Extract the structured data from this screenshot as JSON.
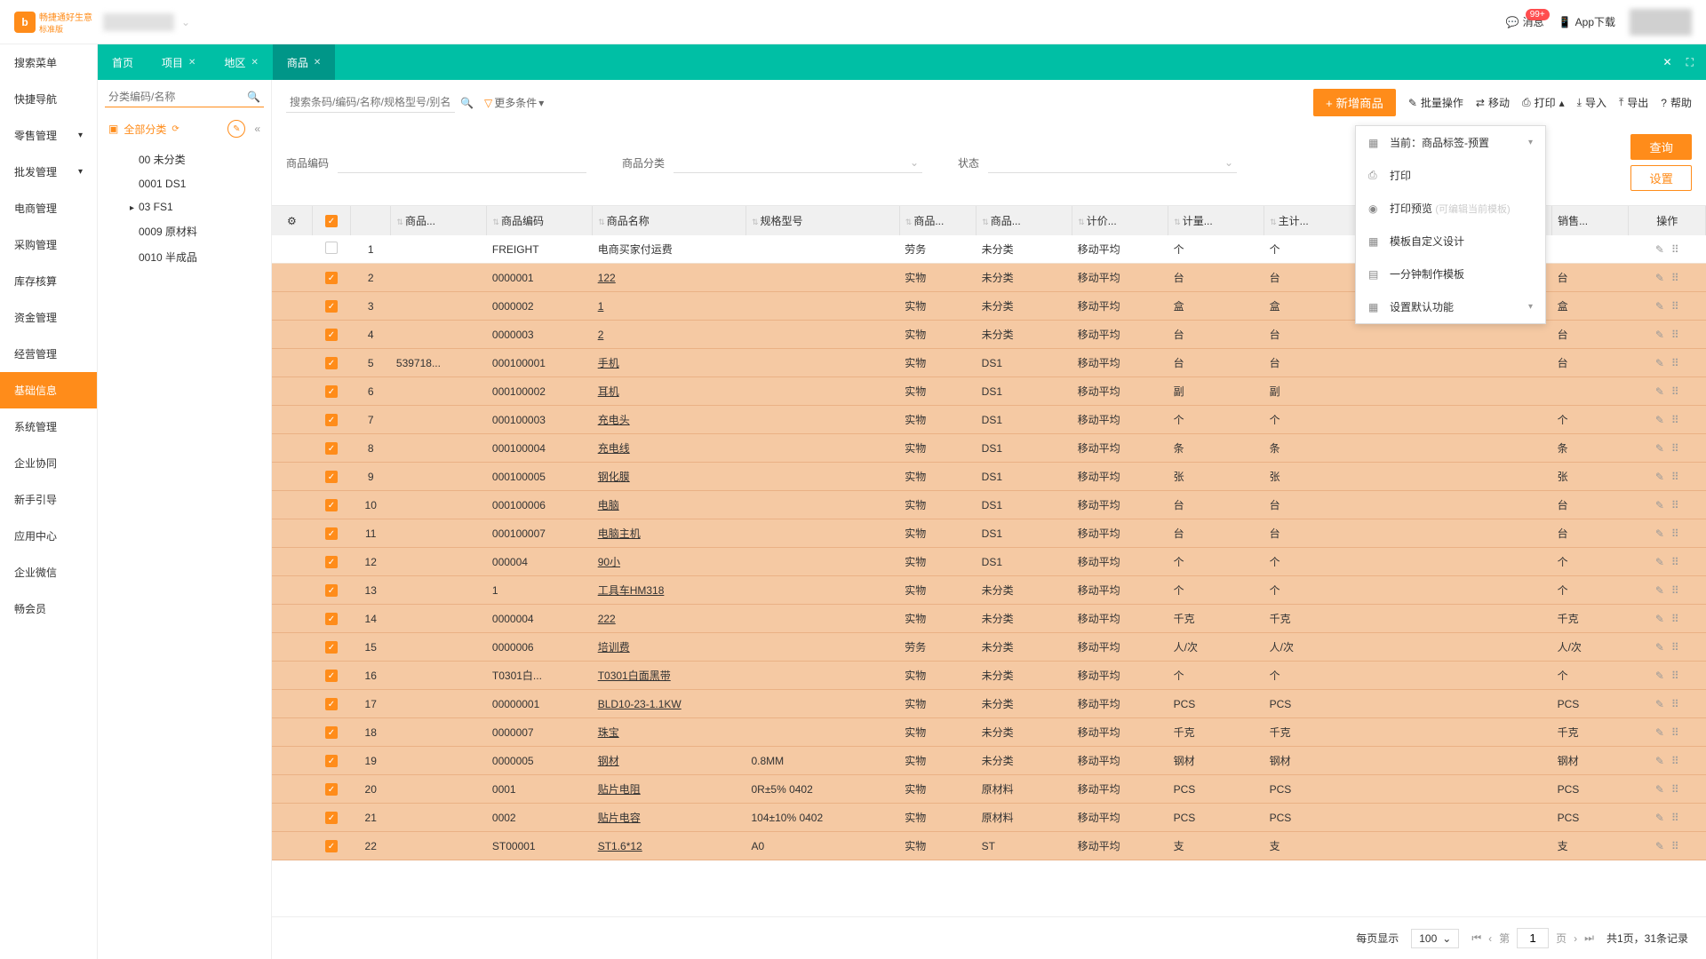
{
  "header": {
    "logo_label": "畅捷通好生意",
    "logo_sub": "标准版",
    "msg": "消息",
    "msg_badge": "99+",
    "download": "App下载"
  },
  "tabs": [
    {
      "label": "首页",
      "closable": false
    },
    {
      "label": "项目",
      "closable": true
    },
    {
      "label": "地区",
      "closable": true
    },
    {
      "label": "商品",
      "closable": true,
      "active": true
    }
  ],
  "sidebar": [
    {
      "label": "搜索菜单"
    },
    {
      "label": "快捷导航"
    },
    {
      "label": "零售管理",
      "expandable": true
    },
    {
      "label": "批发管理",
      "expandable": true
    },
    {
      "label": "电商管理"
    },
    {
      "label": "采购管理"
    },
    {
      "label": "库存核算"
    },
    {
      "label": "资金管理"
    },
    {
      "label": "经营管理"
    },
    {
      "label": "基础信息",
      "active": true
    },
    {
      "label": "系统管理"
    },
    {
      "label": "企业协同"
    },
    {
      "label": "新手引导"
    },
    {
      "label": "应用中心"
    },
    {
      "label": "企业微信"
    },
    {
      "label": "畅会员"
    }
  ],
  "category": {
    "search_placeholder": "分类编码/名称",
    "all_label": "全部分类",
    "items": [
      {
        "label": "00 未分类"
      },
      {
        "label": "0001 DS1"
      },
      {
        "label": "03 FS1",
        "caret": true
      },
      {
        "label": "0009 原材料"
      },
      {
        "label": "0010 半成品"
      }
    ]
  },
  "toolbar": {
    "search_placeholder": "搜索条码/编码/名称/规格型号/别名",
    "more": "更多条件",
    "add": "+ 新增商品",
    "batch": "批量操作",
    "move": "移动",
    "print": "打印",
    "import": "导入",
    "export": "导出",
    "help": "帮助"
  },
  "filters": {
    "code_label": "商品编码",
    "cat_label": "商品分类",
    "status_label": "状态",
    "query": "查询",
    "settings": "设置"
  },
  "print_menu": {
    "current_prefix": "当前：",
    "current_value": "商品标签-预置",
    "print": "打印",
    "preview": "打印预览",
    "preview_hint": "(可编辑当前模板)",
    "template": "模板自定义设计",
    "quick": "一分钟制作模板",
    "default": "设置默认功能"
  },
  "columns": {
    "barcode": "商品...",
    "code": "商品编码",
    "name": "商品名称",
    "spec": "规格型号",
    "type": "商品...",
    "category": "商品...",
    "pricing": "计价...",
    "unit": "计量...",
    "main_unit": "主计...",
    "sales_unit": "销售...",
    "action": "操作"
  },
  "rows": [
    {
      "idx": "1",
      "chk": false,
      "bar": "",
      "code": "FREIGHT",
      "name": "电商买家付运费",
      "spec": "",
      "type": "劳务",
      "cat": "未分类",
      "price": "移动平均",
      "unit": "个",
      "munit": "个",
      "sunit": "",
      "link": false
    },
    {
      "idx": "2",
      "chk": true,
      "bar": "",
      "code": "0000001",
      "name": "122",
      "spec": "",
      "type": "实物",
      "cat": "未分类",
      "price": "移动平均",
      "unit": "台",
      "munit": "台",
      "sunit": "台",
      "link": true
    },
    {
      "idx": "3",
      "chk": true,
      "bar": "",
      "code": "0000002",
      "name": "1",
      "spec": "",
      "type": "实物",
      "cat": "未分类",
      "price": "移动平均",
      "unit": "盒",
      "munit": "盒",
      "sunit": "盒",
      "link": true
    },
    {
      "idx": "4",
      "chk": true,
      "bar": "",
      "code": "0000003",
      "name": "2",
      "spec": "",
      "type": "实物",
      "cat": "未分类",
      "price": "移动平均",
      "unit": "台",
      "munit": "台",
      "sunit": "台",
      "link": true
    },
    {
      "idx": "5",
      "chk": true,
      "bar": "539718...",
      "code": "000100001",
      "name": "手机",
      "spec": "",
      "type": "实物",
      "cat": "DS1",
      "price": "移动平均",
      "unit": "台",
      "munit": "台",
      "sunit": "台",
      "link": true
    },
    {
      "idx": "6",
      "chk": true,
      "bar": "",
      "code": "000100002",
      "name": "耳机",
      "spec": "",
      "type": "实物",
      "cat": "DS1",
      "price": "移动平均",
      "unit": "副",
      "munit": "副",
      "sunit": "",
      "link": true
    },
    {
      "idx": "7",
      "chk": true,
      "bar": "",
      "code": "000100003",
      "name": "充电头",
      "spec": "",
      "type": "实物",
      "cat": "DS1",
      "price": "移动平均",
      "unit": "个",
      "munit": "个",
      "sunit": "个",
      "link": true
    },
    {
      "idx": "8",
      "chk": true,
      "bar": "",
      "code": "000100004",
      "name": "充电线",
      "spec": "",
      "type": "实物",
      "cat": "DS1",
      "price": "移动平均",
      "unit": "条",
      "munit": "条",
      "sunit": "条",
      "link": true
    },
    {
      "idx": "9",
      "chk": true,
      "bar": "",
      "code": "000100005",
      "name": "钢化膜",
      "spec": "",
      "type": "实物",
      "cat": "DS1",
      "price": "移动平均",
      "unit": "张",
      "munit": "张",
      "sunit": "张",
      "link": true
    },
    {
      "idx": "10",
      "chk": true,
      "bar": "",
      "code": "000100006",
      "name": "电脑",
      "spec": "",
      "type": "实物",
      "cat": "DS1",
      "price": "移动平均",
      "unit": "台",
      "munit": "台",
      "sunit": "台",
      "link": true
    },
    {
      "idx": "11",
      "chk": true,
      "bar": "",
      "code": "000100007",
      "name": "电脑主机",
      "spec": "",
      "type": "实物",
      "cat": "DS1",
      "price": "移动平均",
      "unit": "台",
      "munit": "台",
      "sunit": "台",
      "link": true
    },
    {
      "idx": "12",
      "chk": true,
      "bar": "",
      "code": "000004",
      "name": "90小",
      "spec": "",
      "type": "实物",
      "cat": "DS1",
      "price": "移动平均",
      "unit": "个",
      "munit": "个",
      "sunit": "个",
      "link": true
    },
    {
      "idx": "13",
      "chk": true,
      "bar": "",
      "code": "1",
      "name": "工具车HM318",
      "spec": "",
      "type": "实物",
      "cat": "未分类",
      "price": "移动平均",
      "unit": "个",
      "munit": "个",
      "sunit": "个",
      "link": true
    },
    {
      "idx": "14",
      "chk": true,
      "bar": "",
      "code": "0000004",
      "name": "222",
      "spec": "",
      "type": "实物",
      "cat": "未分类",
      "price": "移动平均",
      "unit": "千克",
      "munit": "千克",
      "sunit": "千克",
      "link": true
    },
    {
      "idx": "15",
      "chk": true,
      "bar": "",
      "code": "0000006",
      "name": "培训费",
      "spec": "",
      "type": "劳务",
      "cat": "未分类",
      "price": "移动平均",
      "unit": "人/次",
      "munit": "人/次",
      "sunit": "人/次",
      "link": true
    },
    {
      "idx": "16",
      "chk": true,
      "bar": "",
      "code": "T0301白...",
      "name": "T0301白面黑带",
      "spec": "",
      "type": "实物",
      "cat": "未分类",
      "price": "移动平均",
      "unit": "个",
      "munit": "个",
      "sunit": "个",
      "link": true
    },
    {
      "idx": "17",
      "chk": true,
      "bar": "",
      "code": "00000001",
      "name": "BLD10-23-1.1KW",
      "spec": "",
      "type": "实物",
      "cat": "未分类",
      "price": "移动平均",
      "unit": "PCS",
      "munit": "PCS",
      "sunit": "PCS",
      "link": true
    },
    {
      "idx": "18",
      "chk": true,
      "bar": "",
      "code": "0000007",
      "name": "珠宝",
      "spec": "",
      "type": "实物",
      "cat": "未分类",
      "price": "移动平均",
      "unit": "千克",
      "munit": "千克",
      "sunit": "千克",
      "link": true
    },
    {
      "idx": "19",
      "chk": true,
      "bar": "",
      "code": "0000005",
      "name": "钢材",
      "spec": "0.8MM",
      "type": "实物",
      "cat": "未分类",
      "price": "移动平均",
      "unit": "钢材",
      "munit": "钢材",
      "sunit": "钢材",
      "link": true
    },
    {
      "idx": "20",
      "chk": true,
      "bar": "",
      "code": "0001",
      "name": "贴片电阻",
      "spec": "0R±5% 0402",
      "type": "实物",
      "cat": "原材料",
      "price": "移动平均",
      "unit": "PCS",
      "munit": "PCS",
      "sunit": "PCS",
      "link": true
    },
    {
      "idx": "21",
      "chk": true,
      "bar": "",
      "code": "0002",
      "name": "贴片电容",
      "spec": "104±10% 0402",
      "type": "实物",
      "cat": "原材料",
      "price": "移动平均",
      "unit": "PCS",
      "munit": "PCS",
      "sunit": "PCS",
      "link": true
    },
    {
      "idx": "22",
      "chk": true,
      "bar": "",
      "code": "ST00001",
      "name": "ST1.6*12",
      "spec": "A0",
      "type": "实物",
      "cat": "ST",
      "price": "移动平均",
      "unit": "支",
      "munit": "支",
      "sunit": "支",
      "link": true
    }
  ],
  "pagination": {
    "per_page_label": "每页显示",
    "per_page": "100",
    "page_label_pre": "第",
    "page": "1",
    "page_label_post": "页",
    "total": "共1页，31条记录"
  }
}
